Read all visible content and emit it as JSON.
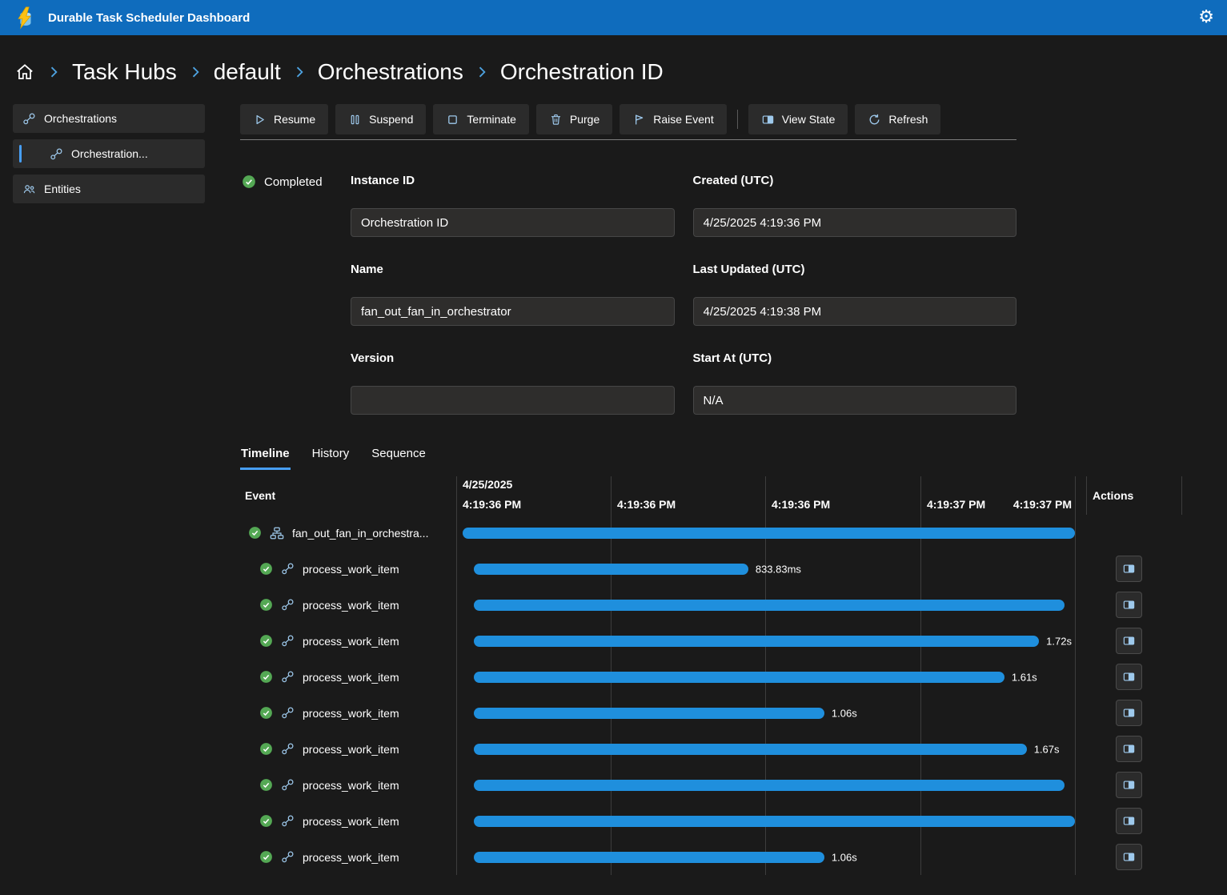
{
  "colors": {
    "brand_blue": "#0f6cbd",
    "accent_blue": "#479ef5",
    "bar_blue": "#1f8fdd",
    "success_green": "#54a854"
  },
  "topbar": {
    "title": "Durable Task Scheduler Dashboard",
    "logo_icon": "task-scheduler-logo",
    "settings_icon": "gear-icon"
  },
  "breadcrumb": {
    "home_icon": "home-icon",
    "items": [
      "Task Hubs",
      "default",
      "Orchestrations",
      "Orchestration ID"
    ]
  },
  "sidebar": {
    "items": [
      {
        "label": "Orchestrations",
        "icon": "link-icon",
        "selected": false
      },
      {
        "label": "Orchestration...",
        "icon": "link-icon",
        "selected": true
      },
      {
        "label": "Entities",
        "icon": "people-icon",
        "selected": false
      }
    ]
  },
  "toolbar": {
    "buttons": [
      {
        "label": "Resume",
        "icon": "play-icon"
      },
      {
        "label": "Suspend",
        "icon": "pause-icon"
      },
      {
        "label": "Terminate",
        "icon": "stop-icon"
      },
      {
        "label": "Purge",
        "icon": "trash-icon"
      },
      {
        "label": "Raise Event",
        "icon": "flag-icon"
      },
      {
        "label": "View State",
        "icon": "view-state-icon"
      },
      {
        "label": "Refresh",
        "icon": "refresh-icon"
      }
    ]
  },
  "details": {
    "status": "Completed",
    "fields": [
      {
        "label": "Instance ID",
        "value": "Orchestration ID"
      },
      {
        "label": "Created (UTC)",
        "value": "4/25/2025 4:19:36 PM"
      },
      {
        "label": "Name",
        "value": "fan_out_fan_in_orchestrator"
      },
      {
        "label": "Last Updated (UTC)",
        "value": "4/25/2025 4:19:38 PM"
      },
      {
        "label": "Version",
        "value": ""
      },
      {
        "label": "Start At (UTC)",
        "value": "N/A"
      }
    ]
  },
  "tabs": [
    {
      "label": "Timeline",
      "active": true
    },
    {
      "label": "History",
      "active": false
    },
    {
      "label": "Sequence",
      "active": false
    }
  ],
  "timeline": {
    "event_header": "Event",
    "actions_header": "Actions",
    "axis_date": "4/25/2025",
    "ticks": [
      "4:19:36 PM",
      "4:19:36 PM",
      "4:19:36 PM",
      "4:19:37 PM",
      "4:19:37 PM"
    ],
    "rows": [
      {
        "name": "fan_out_fan_in_orchestra...",
        "type": "orchestration",
        "status": "completed",
        "start_pct": 1.0,
        "end_pct": 100,
        "duration": "",
        "has_action": false
      },
      {
        "name": "process_work_item",
        "type": "activity",
        "status": "completed",
        "start_pct": 2.8,
        "end_pct": 47.2,
        "duration": "833.83ms",
        "has_action": true
      },
      {
        "name": "process_work_item",
        "type": "activity",
        "status": "completed",
        "start_pct": 2.8,
        "end_pct": 98.3,
        "duration": "",
        "has_action": true
      },
      {
        "name": "process_work_item",
        "type": "activity",
        "status": "completed",
        "start_pct": 2.8,
        "end_pct": 94.2,
        "duration": "1.72s",
        "has_action": true
      },
      {
        "name": "process_work_item",
        "type": "activity",
        "status": "completed",
        "start_pct": 2.8,
        "end_pct": 88.6,
        "duration": "1.61s",
        "has_action": true
      },
      {
        "name": "process_work_item",
        "type": "activity",
        "status": "completed",
        "start_pct": 2.8,
        "end_pct": 59.5,
        "duration": "1.06s",
        "has_action": true
      },
      {
        "name": "process_work_item",
        "type": "activity",
        "status": "completed",
        "start_pct": 2.8,
        "end_pct": 92.2,
        "duration": "1.67s",
        "has_action": true
      },
      {
        "name": "process_work_item",
        "type": "activity",
        "status": "completed",
        "start_pct": 2.8,
        "end_pct": 98.3,
        "duration": "",
        "has_action": true
      },
      {
        "name": "process_work_item",
        "type": "activity",
        "status": "completed",
        "start_pct": 2.8,
        "end_pct": 100,
        "duration": "",
        "has_action": true
      },
      {
        "name": "process_work_item",
        "type": "activity",
        "status": "completed",
        "start_pct": 2.8,
        "end_pct": 59.5,
        "duration": "1.06s",
        "has_action": true
      }
    ]
  }
}
